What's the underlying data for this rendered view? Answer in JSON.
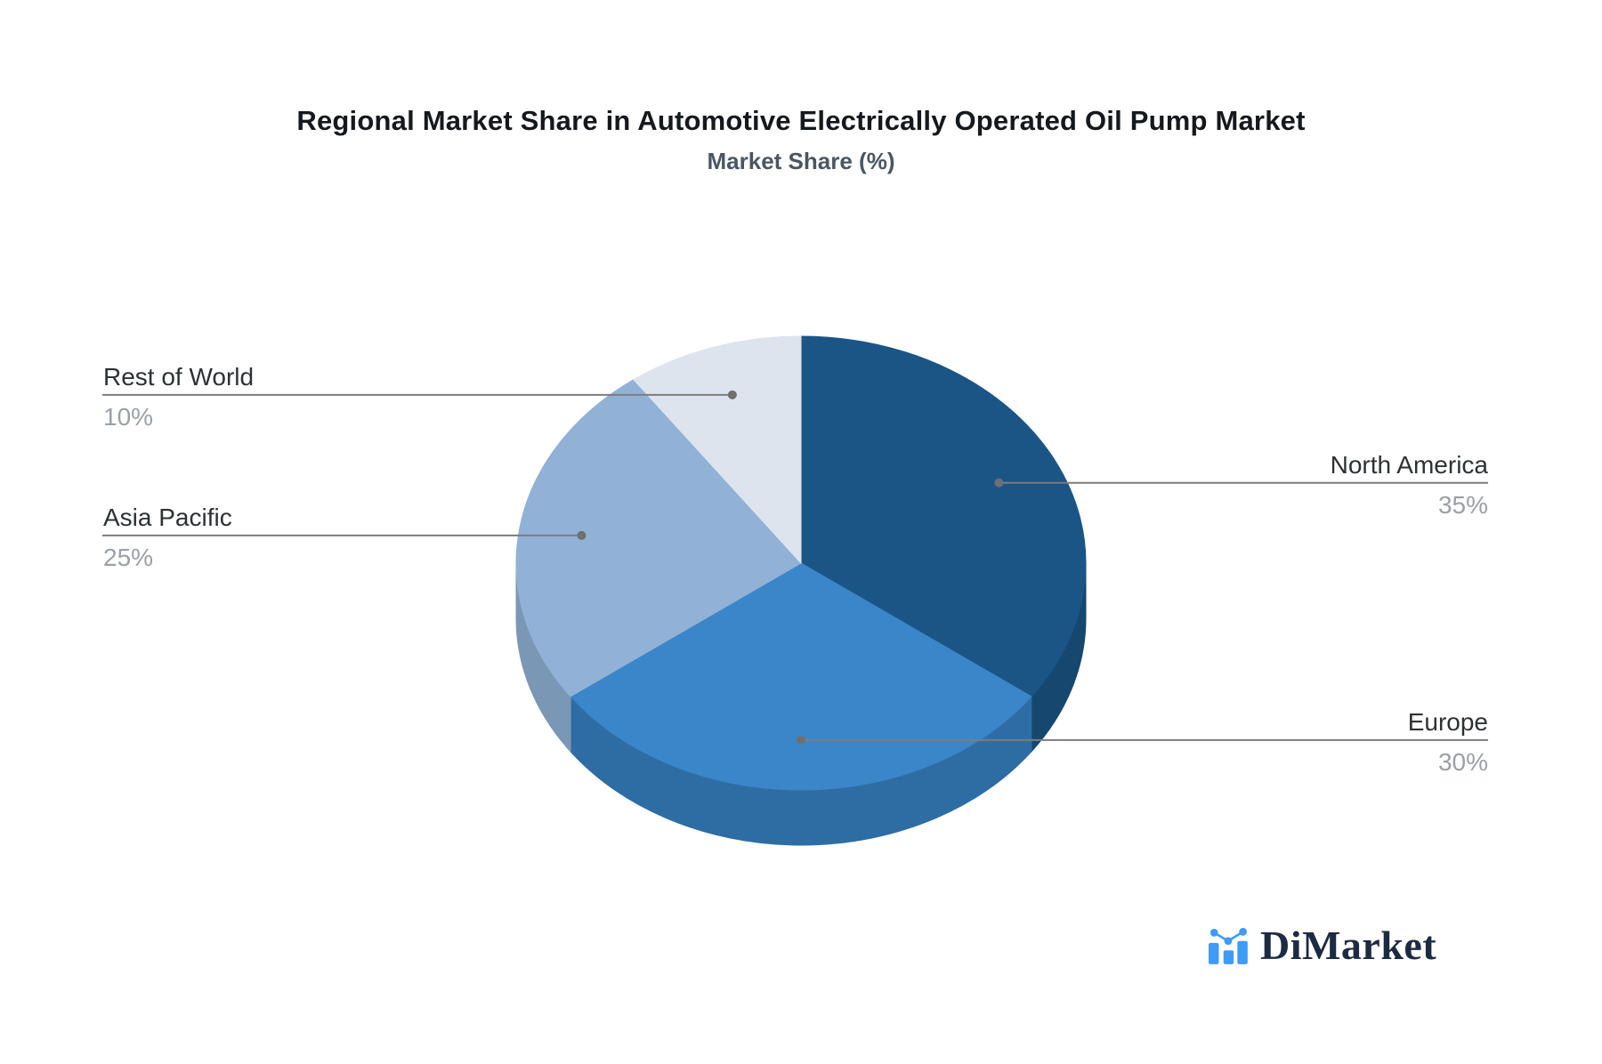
{
  "chart_data": {
    "type": "pie",
    "title": "Regional Market Share in Automotive Electrically Operated Oil Pump Market",
    "subtitle": "Market Share (%)",
    "unit": "%",
    "effect": "3d",
    "start_angle_deg": 0,
    "direction": "clockwise",
    "legend": "none (direct leader-line labels)",
    "slices": [
      {
        "label": "North America",
        "value": 35,
        "pct_label": "35%",
        "color": "#1B5586",
        "side_color": "#15476F",
        "label_side": "right"
      },
      {
        "label": "Europe",
        "value": 30,
        "pct_label": "30%",
        "color": "#3B86C8",
        "side_color": "#2E6DA4",
        "label_side": "right"
      },
      {
        "label": "Asia Pacific",
        "value": 25,
        "pct_label": "25%",
        "color": "#91B2D6",
        "side_color": "#7B97B6",
        "label_side": "left"
      },
      {
        "label": "Rest of World",
        "value": 10,
        "pct_label": "10%",
        "color": "#DDE4EE",
        "side_color": "#C3CEDD",
        "label_side": "left"
      }
    ],
    "colors": {
      "leader_line": "#7d7d7d",
      "leader_dot": "#6f6f6f",
      "label_text": "#2e3134",
      "pct_text": "#9aa0a6",
      "title_text": "#15181c",
      "subtitle_text": "#4b5661"
    }
  },
  "brand": {
    "name": "DiMarket",
    "icon": "bar-line-chart-icon",
    "icon_color": "#3E9CF6",
    "text_color": "#1d2b42"
  }
}
